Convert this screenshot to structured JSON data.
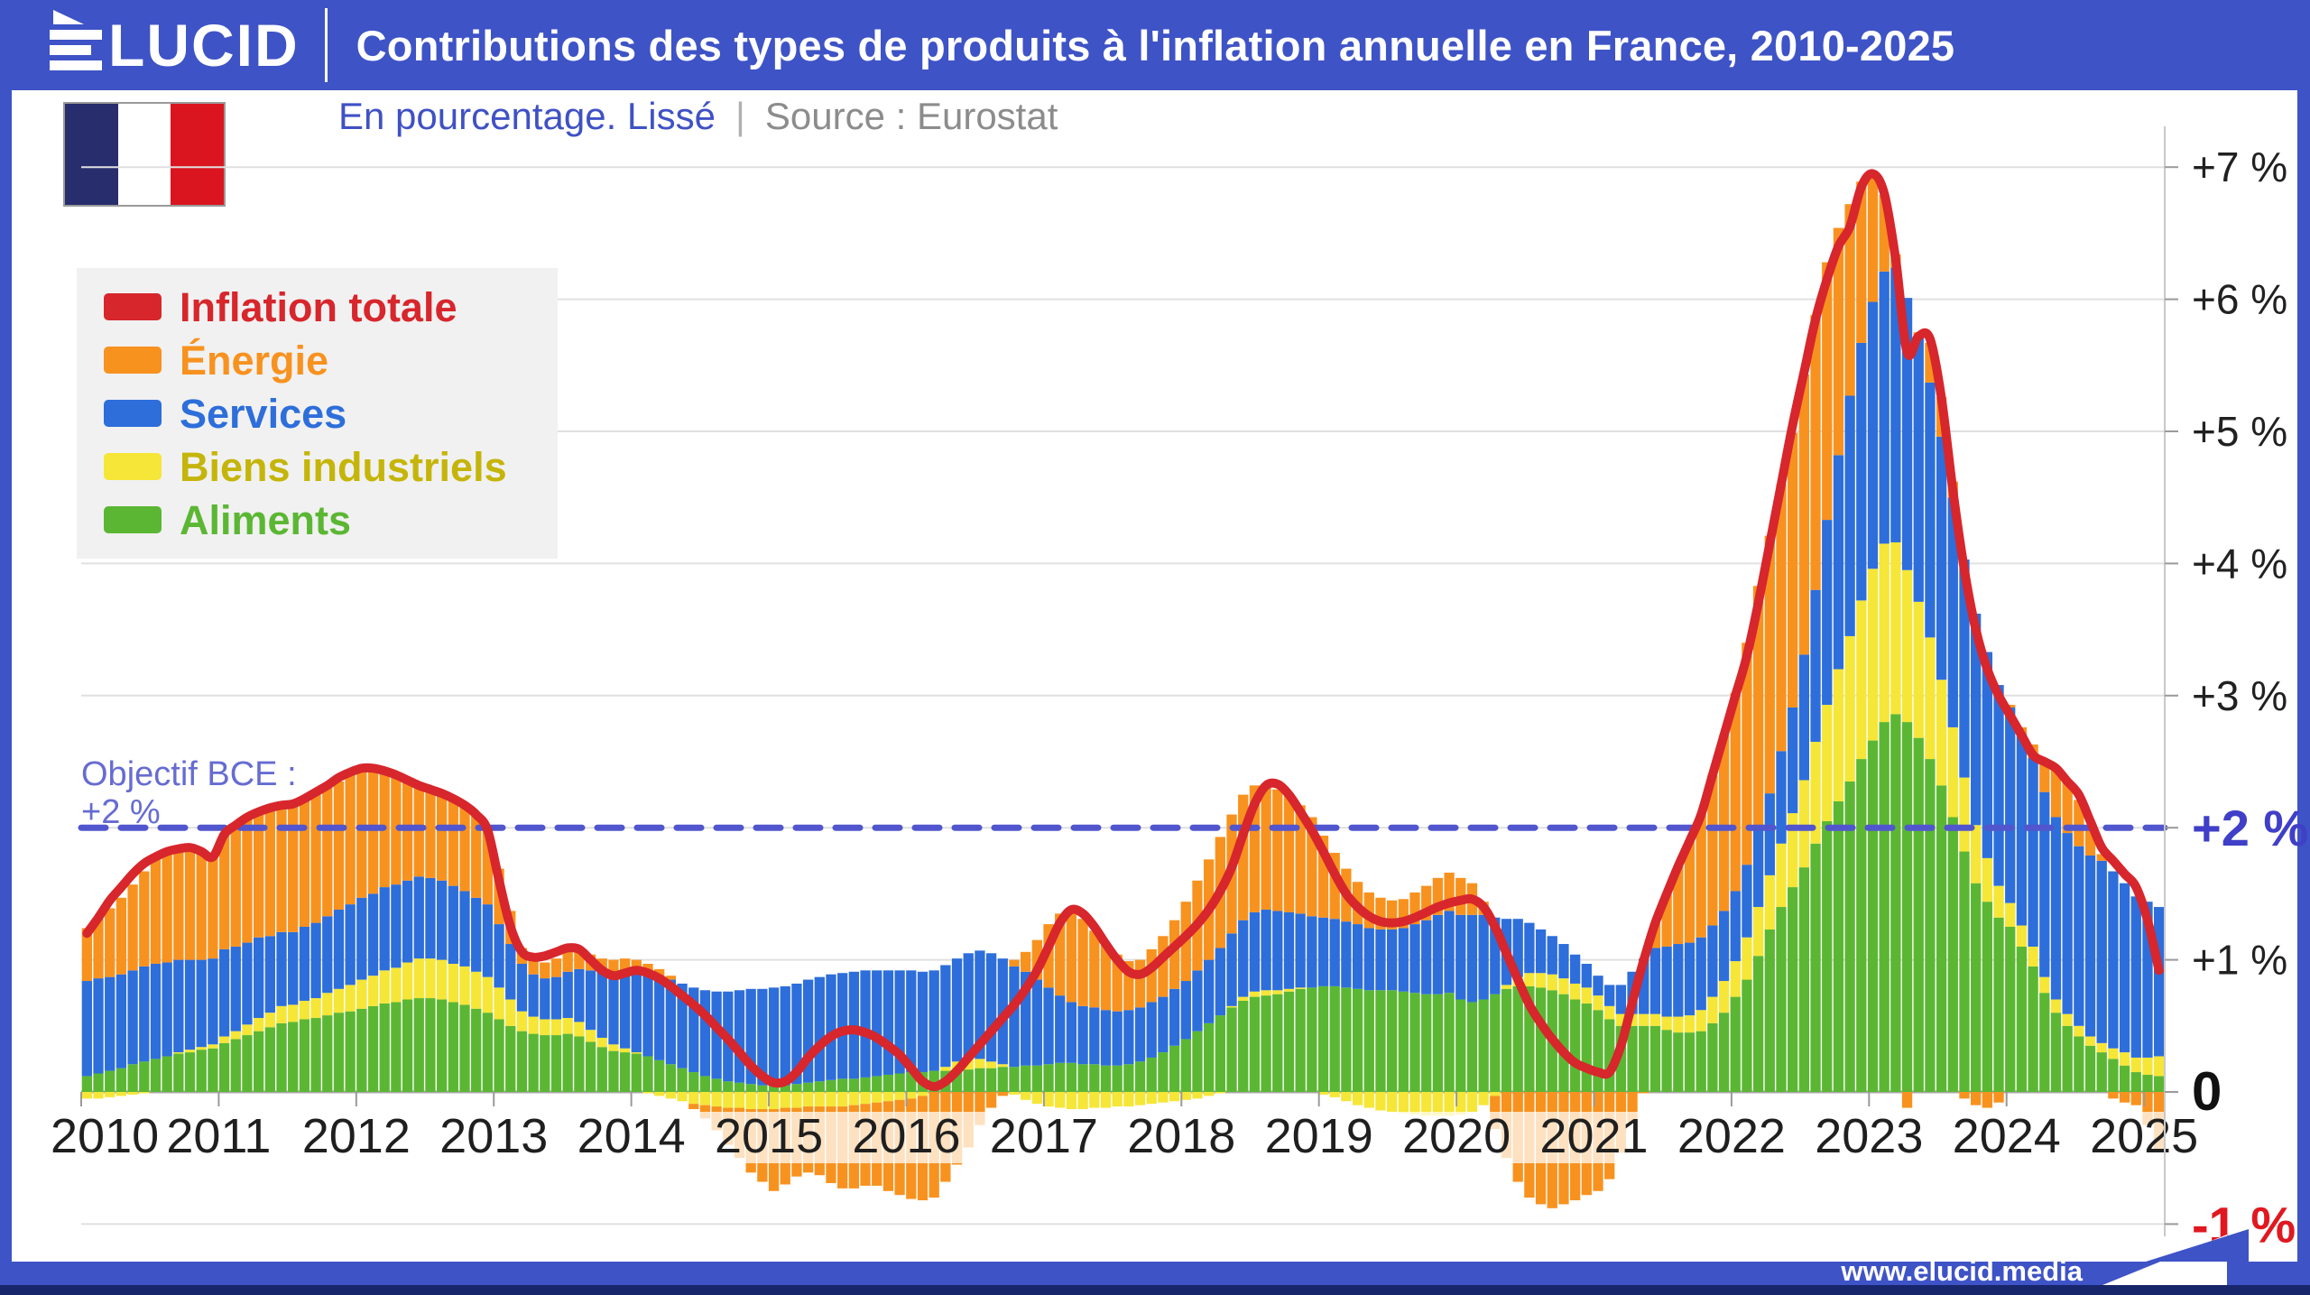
{
  "header": {
    "logo_text": "LUCID",
    "logo_name": "ÉLUCID",
    "title": "Contributions des types de produits à l'inflation annuelle en France, 2010-2025"
  },
  "subtitle": {
    "description": "En pourcentage. Lissé",
    "separator": "|",
    "source": "Source : Eurostat"
  },
  "flag": {
    "name": "drapeau-france",
    "colors": [
      "#282D6E",
      "#FFFFFF",
      "#DB1520"
    ]
  },
  "legend": {
    "background": "#F1F1F1",
    "items": [
      {
        "label": "Inflation totale",
        "swatch_color": "#D7262C",
        "text_color": "#D7262C"
      },
      {
        "label": "Énergie",
        "swatch_color": "#F8921F",
        "text_color": "#F8921F"
      },
      {
        "label": "Services",
        "swatch_color": "#2D6EDA",
        "text_color": "#2D6EDA"
      },
      {
        "label": "Biens industriels",
        "swatch_color": "#F6E637",
        "text_color": "#C5B50A"
      },
      {
        "label": "Aliments",
        "swatch_color": "#5BB733",
        "text_color": "#5BB733"
      }
    ]
  },
  "annotation": {
    "line1": "Objectif BCE :",
    "line2": "+2 %",
    "color": "#666CD1"
  },
  "footer": {
    "url": "www.elucid.media"
  },
  "chart_data": {
    "type": "bar",
    "subtype": "stacked-monthly-bars-with-line",
    "title": "Contributions des types de produits à l'inflation annuelle en France, 2010-2025",
    "unit": "percentage points",
    "x_start": "2010-01",
    "x_end": "2025-02",
    "frequency": "monthly",
    "xlabel": "",
    "ylabel": "",
    "ylim": [
      -1.35,
      7.35
    ],
    "grid": true,
    "target_line": {
      "label": "Objectif BCE : +2 %",
      "value": 2,
      "color": "#5156CE",
      "style": "dashed"
    },
    "y_ticks": [
      {
        "value": 7,
        "text": "+7 %",
        "color": "#212121",
        "bold": false
      },
      {
        "value": 6,
        "text": "+6 %",
        "color": "#212121",
        "bold": false
      },
      {
        "value": 5,
        "text": "+5 %",
        "color": "#212121",
        "bold": false
      },
      {
        "value": 4,
        "text": "+4 %",
        "color": "#212121",
        "bold": false
      },
      {
        "value": 3,
        "text": "+3 %",
        "color": "#212121",
        "bold": false
      },
      {
        "value": 2,
        "text": "+2 %",
        "color": "#3F3FC8",
        "bold": true
      },
      {
        "value": 1,
        "text": "+1 %",
        "color": "#212121",
        "bold": false
      },
      {
        "value": 0,
        "text": "0",
        "color": "#111111",
        "bold": true
      },
      {
        "value": -1,
        "text": "-1 %",
        "color": "#E01820",
        "bold": true
      }
    ],
    "x_year_labels": [
      "2010",
      "2011",
      "2012",
      "2013",
      "2014",
      "2015",
      "2016",
      "2017",
      "2018",
      "2019",
      "2020",
      "2021",
      "2022",
      "2023",
      "2024",
      "2025"
    ],
    "series": [
      {
        "name": "Aliments",
        "role": "bar",
        "color": "#5BB733",
        "values": [
          0.12,
          0.14,
          0.16,
          0.18,
          0.21,
          0.23,
          0.25,
          0.27,
          0.29,
          0.3,
          0.32,
          0.33,
          0.37,
          0.4,
          0.43,
          0.46,
          0.49,
          0.52,
          0.53,
          0.55,
          0.56,
          0.58,
          0.6,
          0.61,
          0.63,
          0.65,
          0.67,
          0.68,
          0.7,
          0.71,
          0.71,
          0.7,
          0.68,
          0.66,
          0.63,
          0.6,
          0.55,
          0.5,
          0.46,
          0.44,
          0.43,
          0.43,
          0.44,
          0.42,
          0.38,
          0.34,
          0.31,
          0.3,
          0.29,
          0.27,
          0.24,
          0.21,
          0.18,
          0.15,
          0.12,
          0.1,
          0.08,
          0.07,
          0.06,
          0.05,
          0.05,
          0.05,
          0.06,
          0.07,
          0.08,
          0.09,
          0.1,
          0.1,
          0.11,
          0.12,
          0.13,
          0.14,
          0.15,
          0.15,
          0.16,
          0.16,
          0.17,
          0.17,
          0.18,
          0.18,
          0.19,
          0.19,
          0.2,
          0.2,
          0.21,
          0.22,
          0.22,
          0.21,
          0.21,
          0.2,
          0.2,
          0.21,
          0.23,
          0.26,
          0.3,
          0.35,
          0.4,
          0.46,
          0.52,
          0.58,
          0.64,
          0.69,
          0.72,
          0.73,
          0.74,
          0.76,
          0.78,
          0.79,
          0.8,
          0.8,
          0.79,
          0.78,
          0.77,
          0.77,
          0.77,
          0.76,
          0.75,
          0.74,
          0.74,
          0.75,
          0.7,
          0.68,
          0.7,
          0.74,
          0.78,
          0.8,
          0.8,
          0.79,
          0.77,
          0.74,
          0.7,
          0.67,
          0.62,
          0.55,
          0.5,
          0.5,
          0.5,
          0.5,
          0.47,
          0.45,
          0.45,
          0.46,
          0.52,
          0.6,
          0.72,
          0.85,
          1.03,
          1.23,
          1.4,
          1.55,
          1.7,
          1.88,
          2.05,
          2.2,
          2.35,
          2.52,
          2.66,
          2.8,
          2.86,
          2.8,
          2.68,
          2.52,
          2.32,
          2.08,
          1.82,
          1.58,
          1.44,
          1.32,
          1.25,
          1.1,
          0.95,
          0.75,
          0.6,
          0.5,
          0.42,
          0.35,
          0.3,
          0.25,
          0.2,
          0.15,
          0.13,
          0.12
        ]
      },
      {
        "name": "Biens industriels",
        "role": "bar",
        "color": "#F6E637",
        "values": [
          -0.05,
          -0.05,
          -0.04,
          -0.03,
          -0.02,
          -0.01,
          0.0,
          0.0,
          0.01,
          0.02,
          0.02,
          0.03,
          0.05,
          0.06,
          0.08,
          0.1,
          0.11,
          0.13,
          0.13,
          0.14,
          0.15,
          0.17,
          0.18,
          0.2,
          0.22,
          0.23,
          0.25,
          0.26,
          0.28,
          0.3,
          0.3,
          0.3,
          0.29,
          0.29,
          0.28,
          0.27,
          0.24,
          0.2,
          0.15,
          0.13,
          0.12,
          0.12,
          0.12,
          0.11,
          0.09,
          0.07,
          0.05,
          0.03,
          0.01,
          -0.01,
          -0.03,
          -0.05,
          -0.07,
          -0.09,
          -0.1,
          -0.11,
          -0.12,
          -0.12,
          -0.13,
          -0.13,
          -0.13,
          -0.12,
          -0.12,
          -0.11,
          -0.11,
          -0.11,
          -0.11,
          -0.1,
          -0.09,
          -0.08,
          -0.07,
          -0.06,
          -0.05,
          -0.03,
          0.0,
          0.03,
          0.06,
          0.08,
          0.07,
          0.05,
          0.02,
          -0.02,
          -0.06,
          -0.09,
          -0.11,
          -0.12,
          -0.13,
          -0.13,
          -0.12,
          -0.12,
          -0.11,
          -0.11,
          -0.1,
          -0.09,
          -0.08,
          -0.07,
          -0.06,
          -0.05,
          -0.03,
          -0.01,
          0.01,
          0.03,
          0.04,
          0.04,
          0.03,
          0.02,
          0.01,
          0.0,
          -0.02,
          -0.04,
          -0.07,
          -0.1,
          -0.12,
          -0.14,
          -0.15,
          -0.16,
          -0.17,
          -0.18,
          -0.18,
          -0.18,
          -0.17,
          -0.15,
          -0.1,
          -0.03,
          0.03,
          0.07,
          0.1,
          0.11,
          0.12,
          0.12,
          0.12,
          0.12,
          0.11,
          0.1,
          0.09,
          0.09,
          0.09,
          0.09,
          0.1,
          0.12,
          0.13,
          0.16,
          0.2,
          0.24,
          0.27,
          0.32,
          0.37,
          0.41,
          0.48,
          0.56,
          0.66,
          0.77,
          0.88,
          1.0,
          1.1,
          1.2,
          1.3,
          1.35,
          1.3,
          1.15,
          1.03,
          0.92,
          0.8,
          0.68,
          0.56,
          0.44,
          0.33,
          0.24,
          0.18,
          0.16,
          0.15,
          0.12,
          0.1,
          0.09,
          0.08,
          0.07,
          0.07,
          0.08,
          0.1,
          0.11,
          0.13,
          0.15
        ]
      },
      {
        "name": "Services",
        "role": "bar",
        "color": "#2D6EDA",
        "values": [
          0.72,
          0.72,
          0.71,
          0.71,
          0.71,
          0.72,
          0.72,
          0.71,
          0.7,
          0.68,
          0.66,
          0.65,
          0.66,
          0.64,
          0.62,
          0.61,
          0.58,
          0.56,
          0.55,
          0.56,
          0.57,
          0.58,
          0.6,
          0.61,
          0.62,
          0.62,
          0.63,
          0.63,
          0.62,
          0.62,
          0.61,
          0.6,
          0.59,
          0.57,
          0.56,
          0.55,
          0.48,
          0.42,
          0.36,
          0.32,
          0.31,
          0.32,
          0.35,
          0.4,
          0.45,
          0.5,
          0.55,
          0.58,
          0.6,
          0.62,
          0.63,
          0.64,
          0.64,
          0.64,
          0.65,
          0.66,
          0.68,
          0.7,
          0.72,
          0.73,
          0.74,
          0.75,
          0.76,
          0.78,
          0.79,
          0.8,
          0.8,
          0.81,
          0.81,
          0.8,
          0.79,
          0.78,
          0.77,
          0.76,
          0.76,
          0.77,
          0.78,
          0.8,
          0.82,
          0.82,
          0.8,
          0.76,
          0.71,
          0.65,
          0.58,
          0.51,
          0.46,
          0.44,
          0.43,
          0.42,
          0.41,
          0.41,
          0.41,
          0.42,
          0.42,
          0.43,
          0.44,
          0.46,
          0.48,
          0.51,
          0.55,
          0.58,
          0.6,
          0.61,
          0.6,
          0.58,
          0.56,
          0.54,
          0.52,
          0.51,
          0.5,
          0.49,
          0.47,
          0.46,
          0.46,
          0.48,
          0.52,
          0.56,
          0.6,
          0.62,
          0.64,
          0.66,
          0.64,
          0.58,
          0.5,
          0.44,
          0.38,
          0.33,
          0.29,
          0.26,
          0.22,
          0.18,
          0.15,
          0.16,
          0.22,
          0.32,
          0.42,
          0.5,
          0.53,
          0.55,
          0.55,
          0.55,
          0.54,
          0.53,
          0.53,
          0.55,
          0.58,
          0.62,
          0.7,
          0.8,
          0.95,
          1.15,
          1.4,
          1.62,
          1.82,
          1.95,
          2.02,
          2.06,
          2.08,
          2.06,
          2.0,
          1.93,
          1.84,
          1.74,
          1.65,
          1.6,
          1.56,
          1.52,
          1.48,
          1.45,
          1.43,
          1.4,
          1.38,
          1.37,
          1.36,
          1.37,
          1.38,
          1.34,
          1.28,
          1.22,
          1.18,
          1.13
        ]
      },
      {
        "name": "Énergie",
        "role": "bar",
        "color": "#F8921F",
        "values": [
          0.4,
          0.45,
          0.52,
          0.58,
          0.65,
          0.72,
          0.8,
          0.83,
          0.84,
          0.85,
          0.82,
          0.78,
          0.88,
          0.92,
          0.95,
          0.95,
          0.96,
          0.96,
          0.97,
          0.97,
          0.97,
          0.97,
          0.97,
          0.98,
          0.98,
          0.95,
          0.88,
          0.82,
          0.76,
          0.7,
          0.67,
          0.66,
          0.66,
          0.65,
          0.63,
          0.6,
          0.42,
          0.25,
          0.12,
          0.1,
          0.12,
          0.14,
          0.15,
          0.14,
          0.12,
          0.1,
          0.09,
          0.1,
          0.1,
          0.08,
          0.06,
          0.03,
          0.0,
          -0.04,
          -0.1,
          -0.18,
          -0.28,
          -0.38,
          -0.48,
          -0.55,
          -0.62,
          -0.58,
          -0.52,
          -0.5,
          -0.52,
          -0.58,
          -0.62,
          -0.63,
          -0.62,
          -0.63,
          -0.68,
          -0.72,
          -0.76,
          -0.79,
          -0.8,
          -0.68,
          -0.55,
          -0.42,
          -0.25,
          -0.12,
          -0.03,
          0.05,
          0.15,
          0.3,
          0.48,
          0.62,
          0.7,
          0.66,
          0.58,
          0.5,
          0.43,
          0.37,
          0.36,
          0.4,
          0.46,
          0.52,
          0.6,
          0.68,
          0.76,
          0.84,
          0.9,
          0.95,
          0.96,
          0.95,
          0.92,
          0.88,
          0.82,
          0.75,
          0.62,
          0.5,
          0.4,
          0.32,
          0.27,
          0.24,
          0.22,
          0.22,
          0.24,
          0.26,
          0.28,
          0.29,
          0.28,
          0.24,
          0.1,
          -0.25,
          -0.5,
          -0.68,
          -0.8,
          -0.85,
          -0.88,
          -0.85,
          -0.82,
          -0.78,
          -0.75,
          -0.66,
          -0.46,
          -0.23,
          -0.01,
          0.19,
          0.4,
          0.59,
          0.77,
          0.93,
          1.14,
          1.33,
          1.5,
          1.68,
          1.85,
          1.95,
          2.02,
          2.08,
          2.12,
          2.08,
          1.95,
          1.72,
          1.45,
          1.22,
          0.98,
          0.58,
          0.1,
          -0.12,
          0.04,
          0.3,
          0.3,
          0.12,
          -0.05,
          -0.1,
          -0.12,
          -0.08,
          0.02,
          0.05,
          0.1,
          0.25,
          0.38,
          0.4,
          0.35,
          0.2,
          0.05,
          -0.05,
          -0.08,
          -0.1,
          -0.25,
          -0.45
        ]
      },
      {
        "name": "Inflation totale",
        "role": "line",
        "color": "#D7262C",
        "values": [
          1.2,
          1.32,
          1.45,
          1.55,
          1.65,
          1.73,
          1.78,
          1.82,
          1.84,
          1.85,
          1.82,
          1.78,
          1.95,
          2.02,
          2.08,
          2.12,
          2.15,
          2.17,
          2.18,
          2.22,
          2.27,
          2.32,
          2.38,
          2.42,
          2.45,
          2.45,
          2.43,
          2.4,
          2.36,
          2.32,
          2.29,
          2.26,
          2.22,
          2.17,
          2.1,
          1.98,
          1.6,
          1.25,
          1.06,
          1.02,
          1.03,
          1.06,
          1.09,
          1.08,
          1.0,
          0.92,
          0.88,
          0.9,
          0.92,
          0.9,
          0.86,
          0.8,
          0.73,
          0.66,
          0.58,
          0.49,
          0.4,
          0.3,
          0.2,
          0.12,
          0.07,
          0.08,
          0.15,
          0.26,
          0.35,
          0.42,
          0.46,
          0.47,
          0.45,
          0.41,
          0.35,
          0.28,
          0.18,
          0.08,
          0.04,
          0.08,
          0.16,
          0.26,
          0.36,
          0.46,
          0.56,
          0.66,
          0.78,
          0.92,
          1.1,
          1.28,
          1.38,
          1.35,
          1.25,
          1.12,
          1.0,
          0.91,
          0.89,
          0.94,
          1.02,
          1.1,
          1.18,
          1.27,
          1.38,
          1.52,
          1.7,
          1.95,
          2.18,
          2.32,
          2.33,
          2.25,
          2.12,
          1.98,
          1.82,
          1.65,
          1.5,
          1.4,
          1.33,
          1.29,
          1.28,
          1.29,
          1.32,
          1.36,
          1.4,
          1.43,
          1.45,
          1.46,
          1.4,
          1.25,
          1.05,
          0.85,
          0.66,
          0.52,
          0.4,
          0.3,
          0.22,
          0.18,
          0.15,
          0.15,
          0.35,
          0.68,
          1.0,
          1.28,
          1.5,
          1.71,
          1.9,
          2.1,
          2.4,
          2.7,
          3.0,
          3.3,
          3.7,
          4.15,
          4.6,
          5.05,
          5.45,
          5.85,
          6.15,
          6.4,
          6.55,
          6.85,
          6.95,
          6.8,
          6.3,
          5.6,
          5.72,
          5.7,
          5.25,
          4.55,
          3.95,
          3.5,
          3.2,
          3.0,
          2.85,
          2.7,
          2.55,
          2.5,
          2.45,
          2.35,
          2.25,
          2.05,
          1.85,
          1.75,
          1.65,
          1.55,
          1.3,
          0.92
        ]
      }
    ]
  }
}
